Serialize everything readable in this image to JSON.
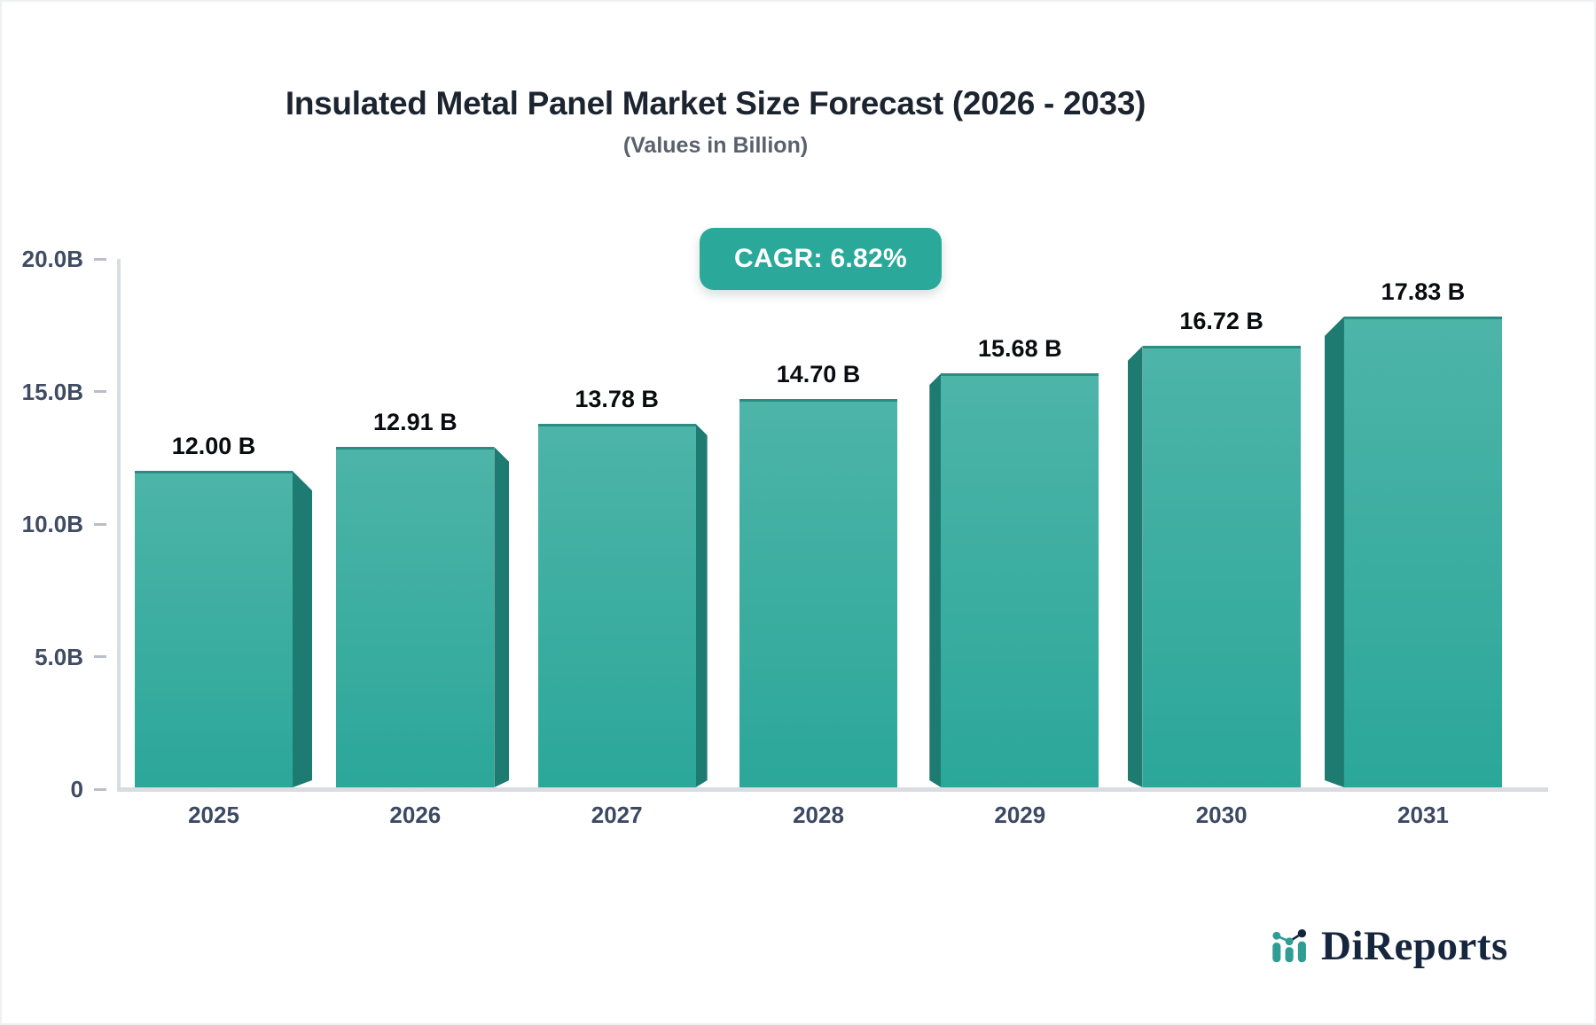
{
  "header": {
    "title": "Insulated Metal Panel Market Size Forecast (2026 - 2033)",
    "subtitle": "(Values in Billion)",
    "cagr_label": "CAGR: 6.82%"
  },
  "chart_data": {
    "type": "bar",
    "title": "Insulated Metal Panel Market Size Forecast (2026 - 2033)",
    "subtitle": "(Values in Billion)",
    "categories": [
      "2025",
      "2026",
      "2027",
      "2028",
      "2029",
      "2030",
      "2031"
    ],
    "values": [
      12.0,
      12.91,
      13.78,
      14.7,
      15.68,
      16.72,
      17.83
    ],
    "value_labels": [
      "12.00 B",
      "12.91 B",
      "13.78 B",
      "14.70 B",
      "15.68 B",
      "16.72 B",
      "17.83 B"
    ],
    "yticks": [
      {
        "label": "20.0B",
        "value": 20
      },
      {
        "label": "15.0B",
        "value": 15
      },
      {
        "label": "10.0B",
        "value": 10
      },
      {
        "label": "5.0B",
        "value": 5
      },
      {
        "label": "0",
        "value": 0
      }
    ],
    "ylim": [
      0,
      20
    ],
    "xlabel": "",
    "ylabel": "",
    "grid": "off",
    "legend": "none",
    "annotation": "CAGR: 6.82%"
  },
  "footer": {
    "brand": "DiReports"
  },
  "colors": {
    "bar_face_top": "#4db4a8",
    "bar_face_bottom": "#2ba79a",
    "bar_face_border": "#2b8c84",
    "bar_side": "#1e7b72",
    "badge_bg": "#2aa99b",
    "axis_line": "#d9dde2",
    "tick_dash": "#b9bfc8",
    "axis_label": "#3f4c63",
    "title_color": "#1c2430",
    "subtitle_color": "#59616e",
    "brand_navy": "#16263e",
    "brand_teal": "#2f9d95"
  }
}
